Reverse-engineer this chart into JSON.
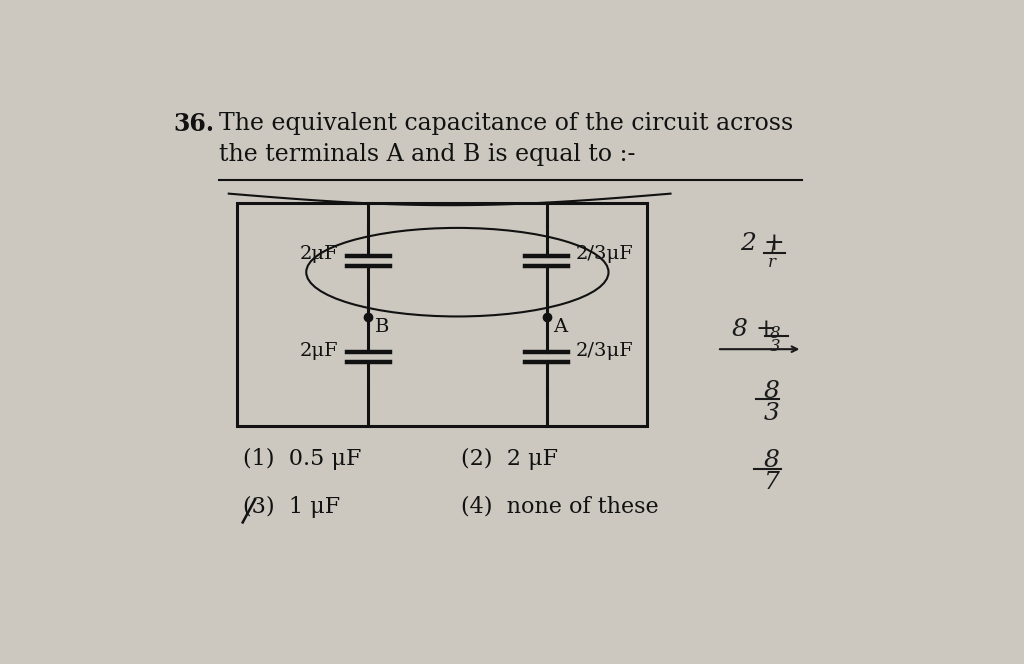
{
  "background_color": "#ccc8c0",
  "question_number": "36.",
  "line1": "The equivalent capacitance of the circuit across",
  "line2": "the terminals A and B is equal to :-",
  "options": [
    "(1)  0.5 μF",
    "(2)  2 μF",
    "(3)  1 μF",
    "(4)  none of these"
  ],
  "cap_top_left_label": "2μF",
  "cap_top_right_label": "2/3μF",
  "cap_bot_left_label": "2μF",
  "cap_bot_right_label": "2/3μF",
  "terminal_A": "A",
  "terminal_B": "B",
  "title_fontsize": 17,
  "option_fontsize": 16,
  "label_fontsize": 14,
  "hw_color": "#1a1a1a"
}
